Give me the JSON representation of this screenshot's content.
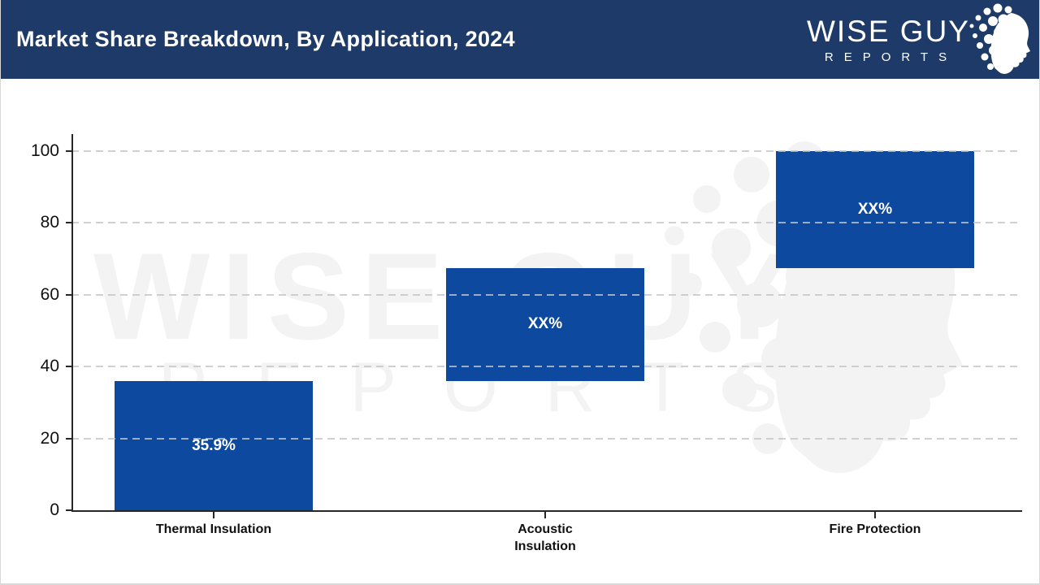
{
  "header": {
    "title": "Market Share Breakdown, By Application, 2024",
    "logo": {
      "line1": "WISE GUY",
      "line2": "REPORTS"
    }
  },
  "watermark": {
    "line1": "WISE GUY",
    "line2": "REPORTS"
  },
  "chart_data": {
    "type": "bar",
    "subtype": "floating-waterfall",
    "title": "Market Share Breakdown, By Application, 2024",
    "categories": [
      "Thermal Insulation",
      "Acoustic\nInsulation",
      "Fire Protection"
    ],
    "series": [
      {
        "name": "Market Share",
        "segments": [
          {
            "category": "Thermal Insulation",
            "start": 0,
            "end": 35.9,
            "label": "35.9%"
          },
          {
            "category": "Acoustic Insulation",
            "start": 35.9,
            "end": 67.5,
            "label": "XX%"
          },
          {
            "category": "Fire Protection",
            "start": 67.5,
            "end": 100,
            "label": "XX%"
          }
        ]
      }
    ],
    "xlabel": "",
    "ylabel": "",
    "ylim": [
      0,
      105
    ],
    "yticks": [
      0,
      20,
      40,
      60,
      80,
      100
    ],
    "grid": "horizontal-dashed",
    "legend": "none",
    "bar_color": "#0d4a9f",
    "value_label_color": "#ffffff",
    "axis_color": "#262626",
    "header_color": "#1e3a68"
  }
}
